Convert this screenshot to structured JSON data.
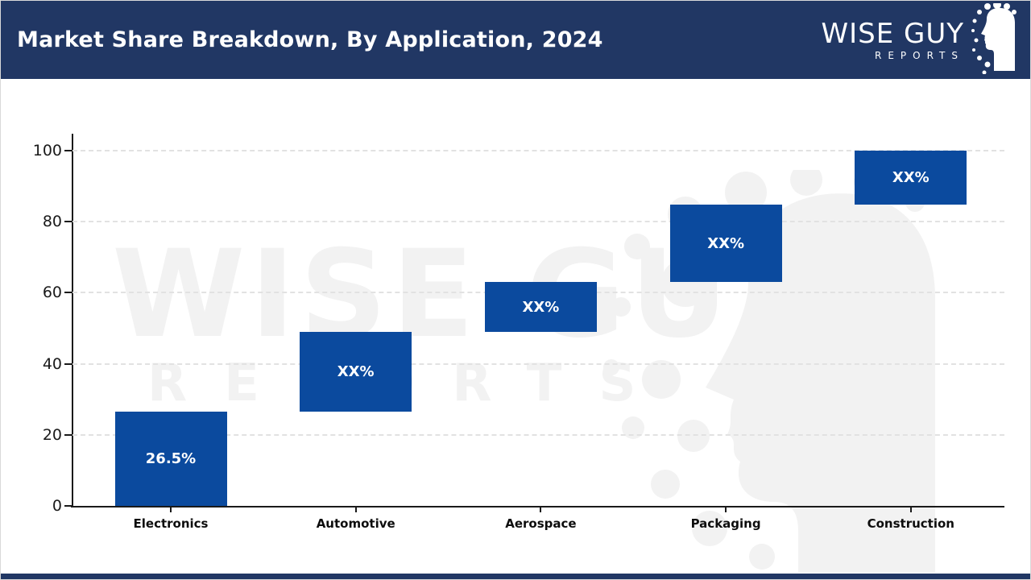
{
  "header": {
    "title": "Market Share Breakdown, By Application, 2024",
    "logo": {
      "line1": "WISE GUY",
      "line2": "REPORTS"
    }
  },
  "watermark": {
    "line1": "WISE GUY",
    "line2": "REPORTS"
  },
  "footer": {},
  "colors": {
    "header_bg": "#213764",
    "bar": "#0b4a9e",
    "bar_label": "#ffffff",
    "grid": "#e2e2e2",
    "axis": "#1a1a1a",
    "watermark": "#f2f2f2"
  },
  "chart_data": {
    "type": "bar",
    "subtype": "waterfall",
    "title": "Market Share Breakdown, By Application, 2024",
    "categories": [
      "Electronics",
      "Automotive",
      "Aerospace",
      "Packaging",
      "Construction"
    ],
    "series": [
      {
        "name": "Market Share",
        "segments": [
          {
            "category": "Electronics",
            "start": 0,
            "end": 26.5,
            "label": "26.5%"
          },
          {
            "category": "Automotive",
            "start": 26.5,
            "end": 49.0,
            "label": "XX%"
          },
          {
            "category": "Aerospace",
            "start": 49.0,
            "end": 63.0,
            "label": "XX%"
          },
          {
            "category": "Packaging",
            "start": 63.0,
            "end": 84.8,
            "label": "XX%"
          },
          {
            "category": "Construction",
            "start": 84.8,
            "end": 100,
            "label": "XX%"
          }
        ]
      }
    ],
    "xlabel": "",
    "ylabel": "",
    "ylim": [
      0,
      105
    ],
    "yticks": [
      0,
      20,
      40,
      60,
      80,
      100
    ],
    "grid": "horizontal-dashed",
    "legend": "none"
  }
}
